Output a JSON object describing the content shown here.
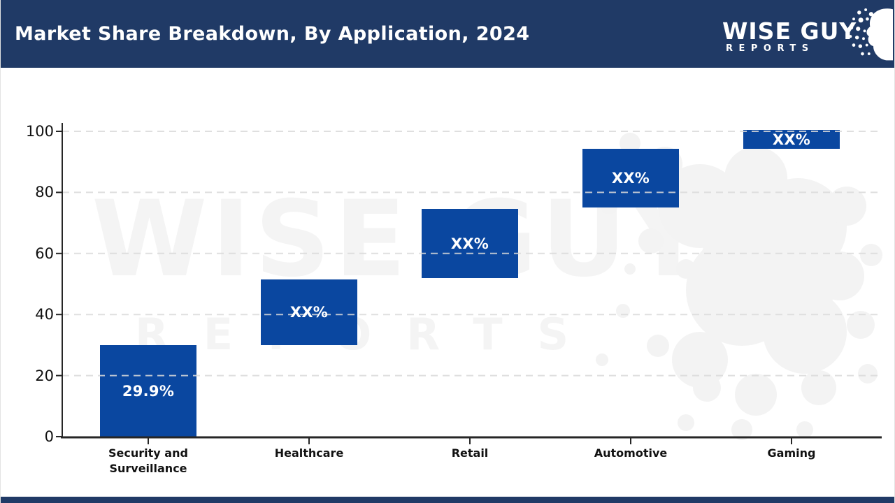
{
  "header": {
    "title": "Market Share Breakdown, By Application, 2024",
    "logo": {
      "line1": "WISE GUY",
      "line2": "REPORTS"
    }
  },
  "watermark": {
    "line1": "WISE GUY",
    "line2": "REPORTS"
  },
  "chart_data": {
    "type": "bar",
    "subtype": "waterfall",
    "title": "Market Share Breakdown, By Application, 2024",
    "xlabel": "",
    "ylabel": "",
    "ylim": [
      0,
      105
    ],
    "yticks": [
      0,
      20,
      40,
      60,
      80,
      100
    ],
    "grid": "horizontal-dashed",
    "legend": "none",
    "categories": [
      "Security and Surveillance",
      "Healthcare",
      "Retail",
      "Automotive",
      "Gaming"
    ],
    "segments": [
      {
        "category": "Security and Surveillance",
        "from": 0,
        "to": 29.9,
        "label": "29.9%"
      },
      {
        "category": "Healthcare",
        "from": 30,
        "to": 51.5,
        "label": "XX%"
      },
      {
        "category": "Retail",
        "from": 52,
        "to": 74.5,
        "label": "XX%"
      },
      {
        "category": "Automotive",
        "from": 75,
        "to": 94.2,
        "label": "XX%"
      },
      {
        "category": "Gaming",
        "from": 94.2,
        "to": 100.4,
        "label": "XX%"
      }
    ]
  },
  "colors": {
    "bar": "#0a47a0",
    "header_bg": "#203a66",
    "footer_bg": "#203a66",
    "grid": "#d9d9d9",
    "axis": "#262626",
    "tick_text": "#111111",
    "bar_label_text": "#ffffff",
    "watermark": "#f4f4f4"
  }
}
